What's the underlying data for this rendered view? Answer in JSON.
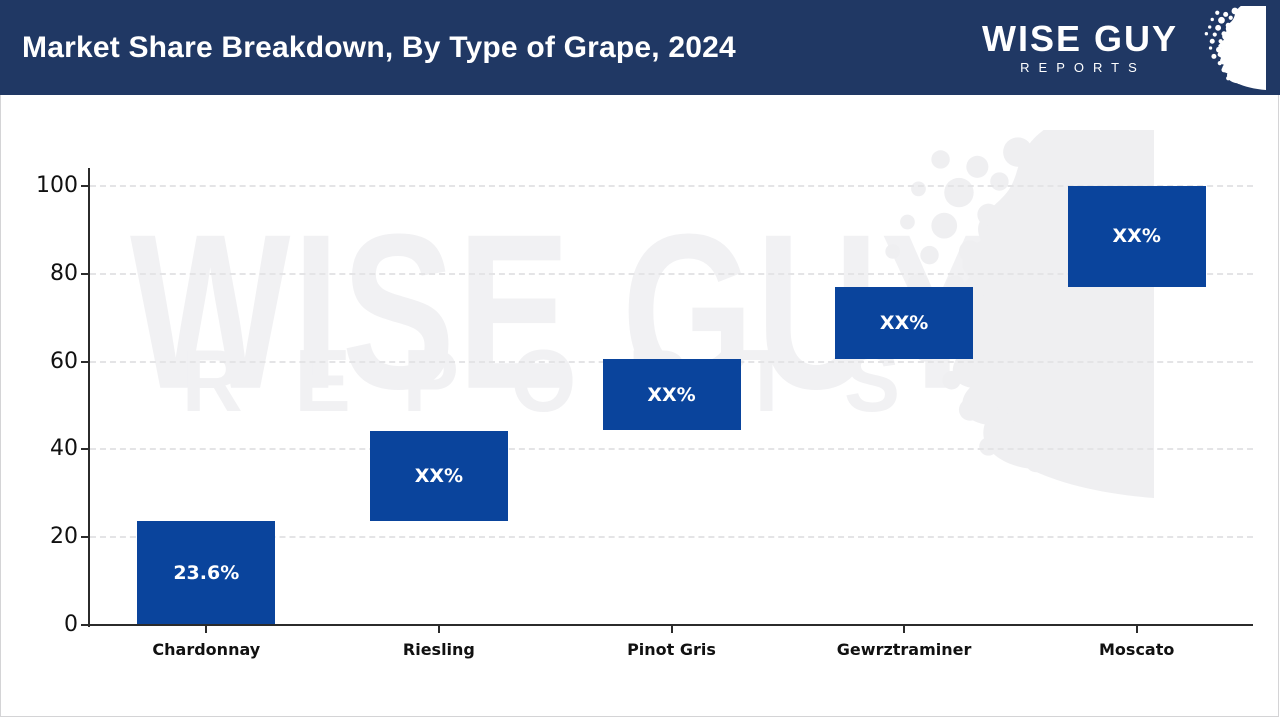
{
  "header": {
    "title": "Market Share Breakdown, By Type of Grape, 2024",
    "bg_color": "#203864",
    "logo": {
      "line1": "WISE GUY",
      "line2": "REPORTS"
    }
  },
  "watermark": {
    "line1": "WISE GUY",
    "line2": "REPORTS"
  },
  "chart_data": {
    "type": "bar",
    "subtype": "waterfall",
    "title": "Market Share Breakdown, By Type of Grape, 2024",
    "categories": [
      "Chardonnay",
      "Riesling",
      "Pinot Gris",
      "Gewrztraminer",
      "Moscato"
    ],
    "segments": [
      {
        "start": 0,
        "end": 23.6,
        "label": "23.6%"
      },
      {
        "start": 23.6,
        "end": 44.2,
        "label": "XX%"
      },
      {
        "start": 44.5,
        "end": 60.5,
        "label": "XX%"
      },
      {
        "start": 60.5,
        "end": 77.0,
        "label": "XX%"
      },
      {
        "start": 77.0,
        "end": 100,
        "label": "XX%"
      }
    ],
    "xlabel": "",
    "ylabel": "",
    "ylim": [
      0,
      100
    ],
    "yticks": [
      0,
      20,
      40,
      60,
      80,
      100
    ],
    "grid": true,
    "grid_style": "dashed",
    "bar_color": "#0a449c",
    "grid_color": "#e4e4e6",
    "axis_color": "#2b2b2b"
  }
}
